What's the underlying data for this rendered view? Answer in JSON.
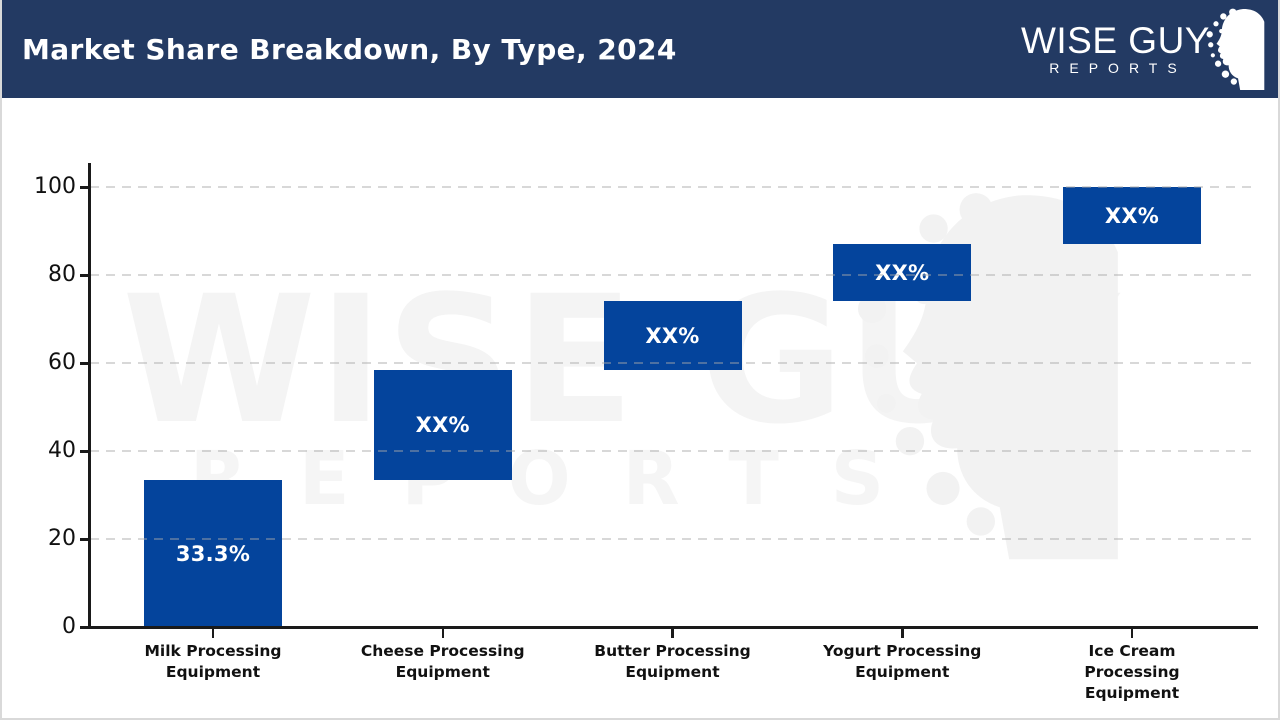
{
  "header": {
    "title": "Market Share Breakdown, By Type, 2024",
    "logo": {
      "primary": "WISE GUY",
      "secondary": "REPORTS"
    }
  },
  "watermark": {
    "primary": "WISE GUY",
    "secondary": "REPORTS"
  },
  "chart_data": {
    "type": "bar",
    "subtype": "waterfall",
    "title": "Market Share Breakdown, By Type, 2024",
    "categories": [
      "Milk Processing Equipment",
      "Cheese Processing Equipment",
      "Butter Processing Equipment",
      "Yogurt Processing Equipment",
      "Ice Cream Processing Equipment"
    ],
    "category_lines": [
      [
        "Milk Processing",
        "Equipment"
      ],
      [
        "Cheese Processing",
        "Equipment"
      ],
      [
        "Butter Processing",
        "Equipment"
      ],
      [
        "Yogurt Processing",
        "Equipment"
      ],
      [
        "Ice Cream",
        "Processing",
        "Equipment"
      ]
    ],
    "bars": [
      {
        "category": "Milk Processing Equipment",
        "label": "33.3%",
        "start": 0,
        "end": 33.3
      },
      {
        "category": "Cheese Processing Equipment",
        "label": "XX%",
        "start": 33.3,
        "end": 58.3
      },
      {
        "category": "Butter Processing Equipment",
        "label": "XX%",
        "start": 58.3,
        "end": 74.0
      },
      {
        "category": "Yogurt Processing Equipment",
        "label": "XX%",
        "start": 74.0,
        "end": 87.0
      },
      {
        "category": "Ice Cream Processing Equipment",
        "label": "XX%",
        "start": 87.0,
        "end": 100.0
      }
    ],
    "ylim": [
      0,
      100
    ],
    "yticks": [
      0,
      20,
      40,
      60,
      80,
      100
    ],
    "xlabel": "",
    "ylabel": "",
    "grid": {
      "horizontal": true,
      "style": "dashed"
    },
    "legend": null,
    "colors": {
      "bar": "#04449C",
      "bar_label": "#ffffff",
      "header_bg": "#233A63",
      "grid": "#d9d9d9",
      "axis": "#1a1a1a",
      "watermark": "#f3f3f3"
    }
  }
}
